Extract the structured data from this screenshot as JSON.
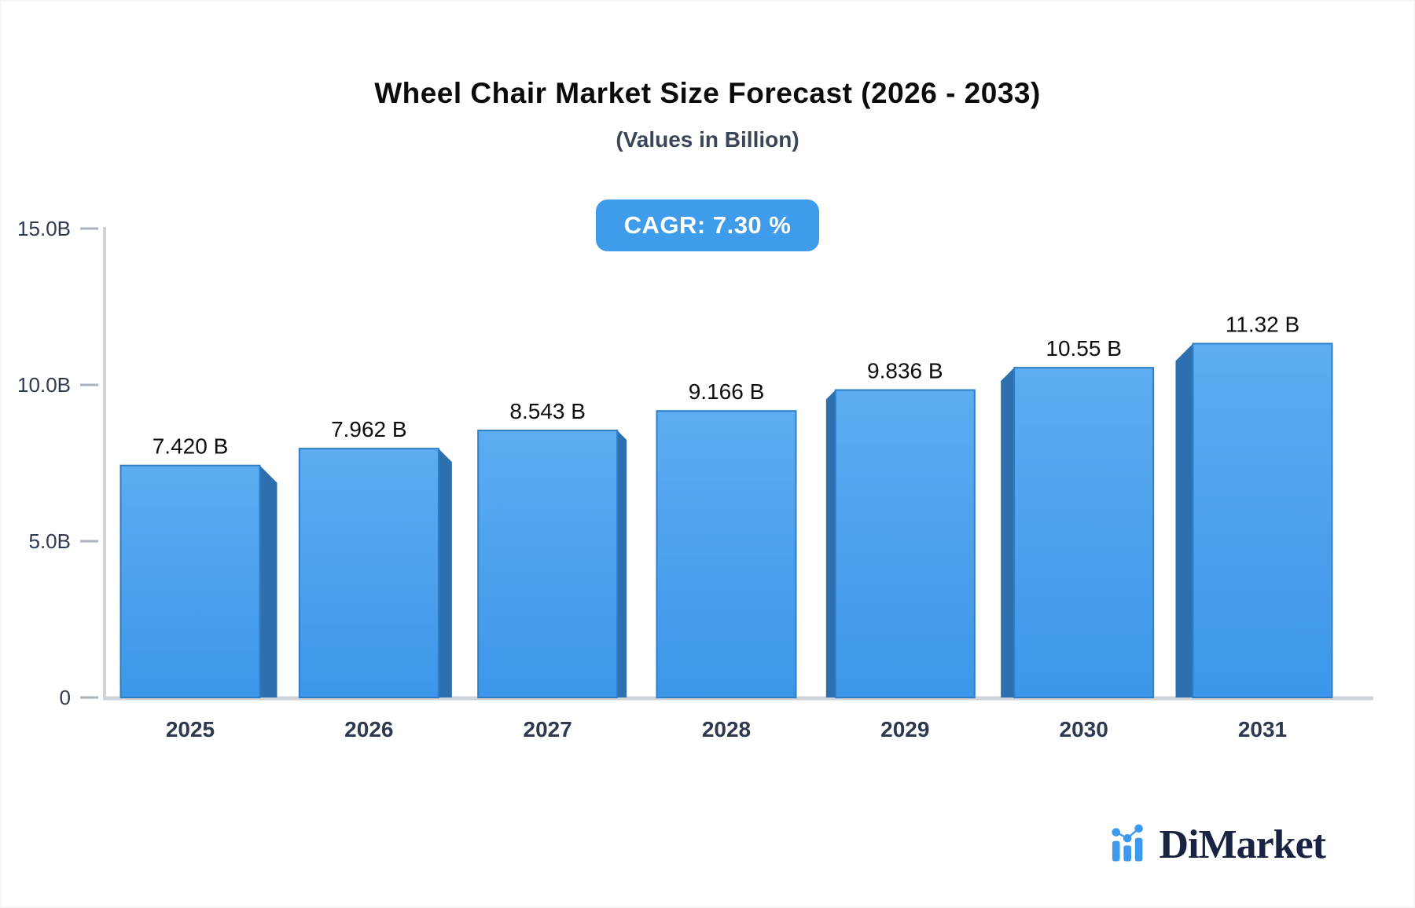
{
  "header": {
    "title": "Wheel Chair Market Size Forecast (2026 - 2033)",
    "subtitle": "(Values in Billion)"
  },
  "badge": {
    "label": "CAGR: 7.30 %"
  },
  "logo": {
    "text": "DiMarket"
  },
  "colors": {
    "badge_bg": "#3f9ceb",
    "bar_face_top": "#5cadf1",
    "bar_face_bottom": "#3d96e9",
    "bar_border": "#2f7fc8",
    "bar_side": "#2d70ad",
    "axis_line": "#cfd4da",
    "tick_dash": "#a9b2bd",
    "axis_text": "#2e3950",
    "value_text": "#0d0d0d",
    "logo_text": "#1a2342",
    "logo_icon": "#3b99f0"
  },
  "chart_data": {
    "type": "bar",
    "title": "Wheel Chair Market Size Forecast (2026 - 2033)",
    "subtitle": "(Values in Billion)",
    "cagr_label": "CAGR: 7.30 %",
    "categories": [
      "2025",
      "2026",
      "2027",
      "2028",
      "2029",
      "2030",
      "2031"
    ],
    "values": [
      7.42,
      7.962,
      8.543,
      9.166,
      9.836,
      10.55,
      11.32
    ],
    "value_labels": [
      "7.420 B",
      "7.962 B",
      "8.543 B",
      "9.166 B",
      "9.836 B",
      "10.55 B",
      "11.32 B"
    ],
    "yticks": [
      {
        "value": 0,
        "label": "0"
      },
      {
        "value": 5,
        "label": "5.0B"
      },
      {
        "value": 10,
        "label": "10.0B"
      },
      {
        "value": 15,
        "label": "15.0B"
      }
    ],
    "ylim": [
      0,
      15
    ],
    "xlabel": "",
    "ylabel": "",
    "grid": false,
    "legend": false,
    "style": "3d-perspective-bars"
  }
}
